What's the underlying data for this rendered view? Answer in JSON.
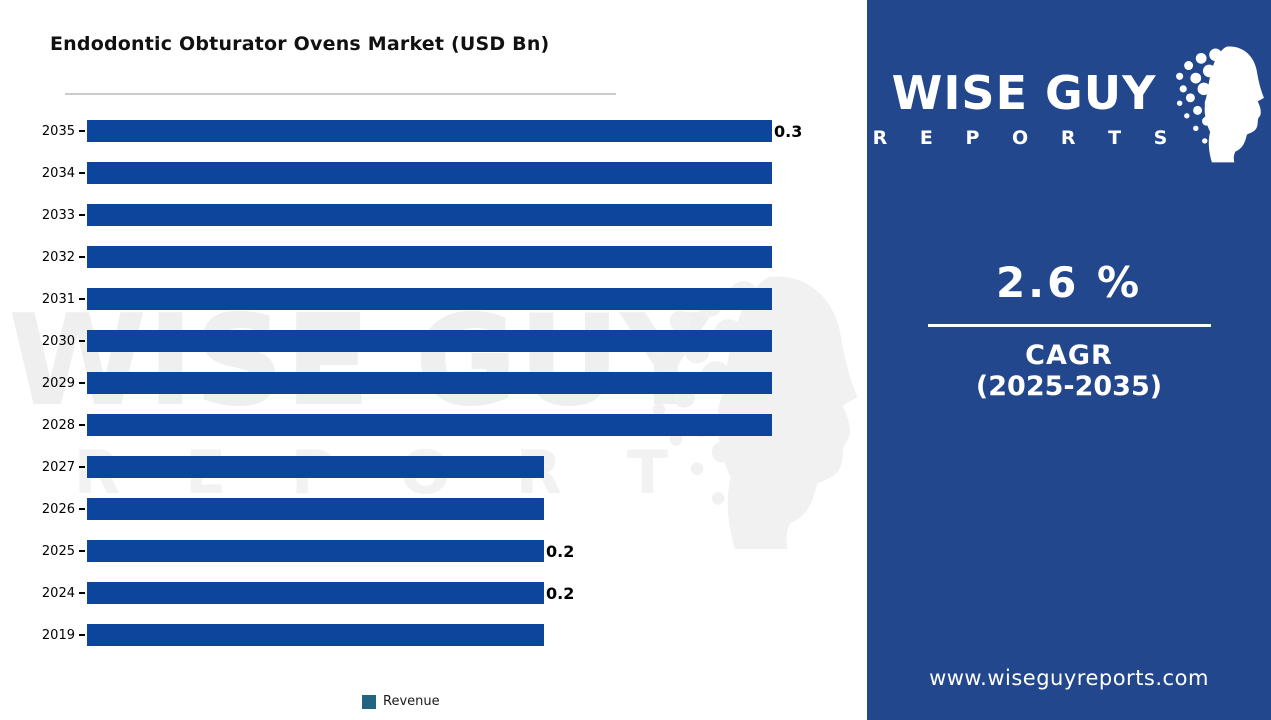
{
  "chart_data": {
    "type": "bar",
    "orientation": "horizontal",
    "title": "Endodontic Obturator Ovens Market (USD Bn)",
    "categories": [
      "2035",
      "2034",
      "2033",
      "2032",
      "2031",
      "2030",
      "2029",
      "2028",
      "2027",
      "2026",
      "2025",
      "2024",
      "2019"
    ],
    "values": [
      0.3,
      0.3,
      0.3,
      0.3,
      0.3,
      0.3,
      0.3,
      0.3,
      0.2,
      0.2,
      0.2,
      0.2,
      0.2
    ],
    "bar_labels": [
      "0.3",
      "",
      "",
      "",
      "",
      "",
      "",
      "",
      "",
      "",
      "0.2",
      "0.2",
      ""
    ],
    "xlabel": "",
    "ylabel": "",
    "xlim": [
      0,
      0.3
    ],
    "grid": false,
    "legend": [
      "Revenue"
    ],
    "legend_position": "bottom",
    "bar_color": "#0d459c",
    "legend_swatch_color": "#236480"
  },
  "watermark": {
    "line1": "WISE GUY",
    "line2": "R E P O R T S"
  },
  "brand": {
    "panel_color": "#23478c",
    "logo_line1": "WISE GUY",
    "logo_line2": "R E P O R T S",
    "cagr_value": "2.6 %",
    "cagr_label": "CAGR",
    "cagr_range": "(2025-2035)",
    "website": "www.wiseguyreports.com"
  }
}
